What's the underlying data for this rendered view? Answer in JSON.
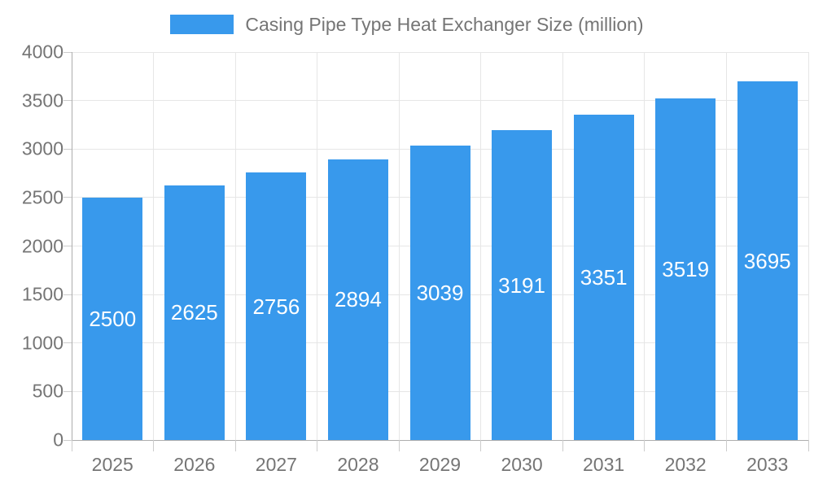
{
  "chart_data": {
    "type": "bar",
    "title": "Casing Pipe Type Heat Exchanger Size (million)",
    "categories": [
      "2025",
      "2026",
      "2027",
      "2028",
      "2029",
      "2030",
      "2031",
      "2032",
      "2033"
    ],
    "values": [
      2500,
      2625,
      2756,
      2894,
      3039,
      3191,
      3351,
      3519,
      3695
    ],
    "xlabel": "",
    "ylabel": "",
    "ylim": [
      0,
      4000
    ],
    "yticks": [
      0,
      500,
      1000,
      1500,
      2000,
      2500,
      3000,
      3500,
      4000
    ],
    "grid": true,
    "legend_position": "top",
    "bar_label_position": "center",
    "colors": {
      "bar": "#3899ec",
      "bar_label": "#ffffff",
      "axis_text": "#757575",
      "gridline": "#e6e6e6",
      "axis_line": "#adadad",
      "tick": "#cccccc",
      "background": "#ffffff"
    }
  }
}
